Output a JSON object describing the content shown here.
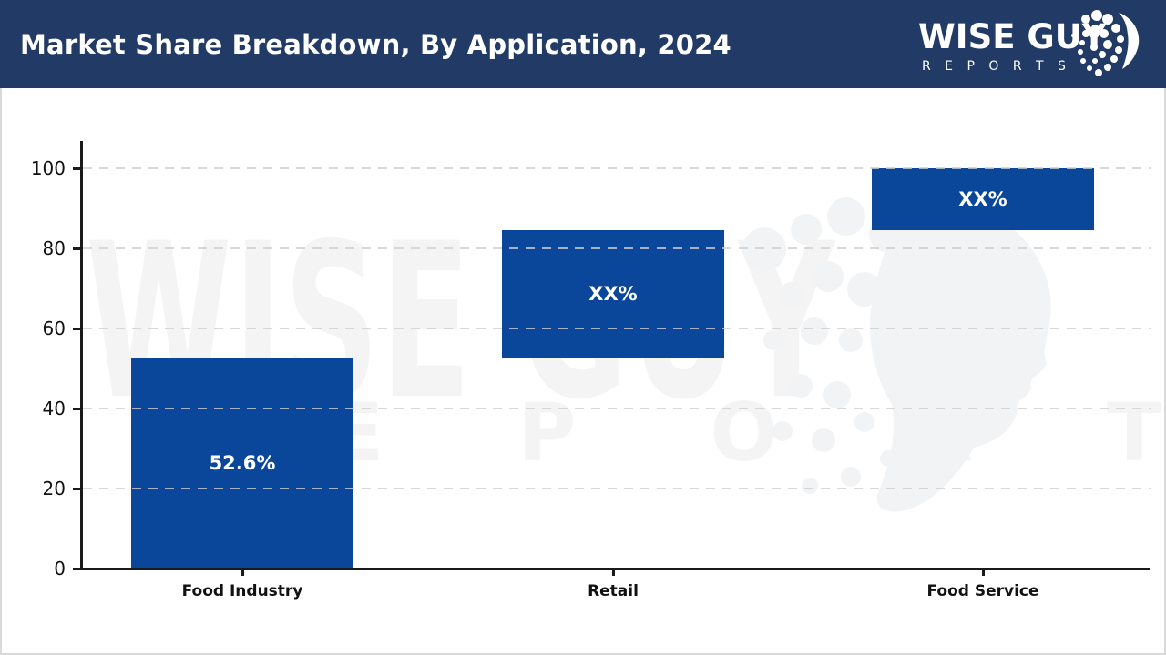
{
  "header": {
    "title": "Market Share Breakdown, By Application, 2024",
    "bg_color": "#223a66",
    "logo": {
      "line1": "WISE GUY",
      "line2": "R E P O R T S"
    }
  },
  "watermark": {
    "line1": "WISE GUY",
    "line2": "R E P O R T S"
  },
  "chart_data": {
    "type": "bar",
    "subtype": "waterfall-floating-bars",
    "title": "Market Share Breakdown, By Application, 2024",
    "categories": [
      "Food Industry",
      "Retail",
      "Food Service"
    ],
    "segments": [
      {
        "category": "Food Industry",
        "base": 0,
        "top": 52.6,
        "label": "52.6%"
      },
      {
        "category": "Retail",
        "base": 52.6,
        "top": 84.5,
        "label": "XX%"
      },
      {
        "category": "Food Service",
        "base": 84.5,
        "top": 100,
        "label": "XX%"
      }
    ],
    "yticks": [
      0,
      20,
      40,
      60,
      80,
      100
    ],
    "ylim": [
      0,
      106
    ],
    "xlabel": "",
    "ylabel": "",
    "bar_color": "#0a4699",
    "label_color": "#ffffff",
    "grid": "horizontal dashed",
    "gridline_color": "#d9d9d9",
    "legend": "none"
  }
}
